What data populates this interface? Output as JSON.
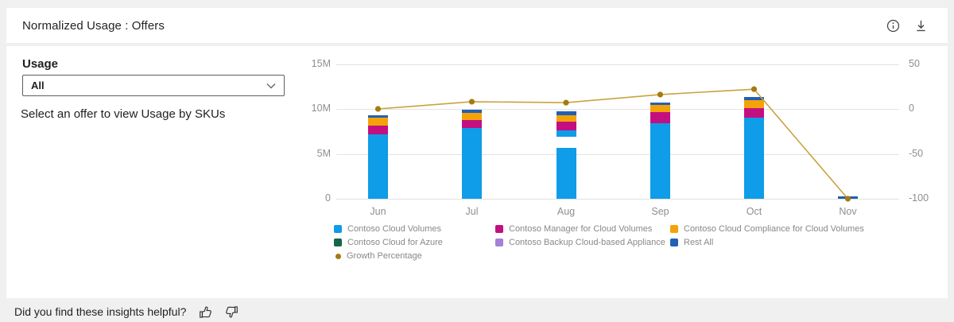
{
  "header": {
    "title": "Normalized Usage : Offers"
  },
  "panel": {
    "usage_label": "Usage",
    "dropdown_value": "All",
    "helper_text": "Select an offer to view Usage by SKUs"
  },
  "footer": {
    "feedback_text": "Did you find these insights helpful?"
  },
  "colors": {
    "volumes": "#0f9ce8",
    "manager": "#c40f80",
    "compliance": "#f4a20a",
    "azure": "#166649",
    "backup": "#a57fd8",
    "rest_all": "#2160b4",
    "growth_line": "#cba33d",
    "growth_dot": "#a57b0f",
    "gap": "#ffffff",
    "gridline": "#e2e2e2",
    "axis_text": "#908e8c"
  },
  "chart_data": {
    "type": "combo-stacked-bar-line",
    "units": "millions of normalized usage (left axis), percent (right axis)",
    "categories": [
      "Jun",
      "Jul",
      "Aug",
      "Sep",
      "Oct",
      "Nov"
    ],
    "left_axis": {
      "ticks": [
        "15M",
        "10M",
        "5M",
        "0"
      ],
      "range_millions": [
        0,
        15
      ],
      "grid": true
    },
    "right_axis": {
      "ticks": [
        "50",
        "0",
        "-50",
        "-100"
      ],
      "range_percent": [
        -100,
        50
      ]
    },
    "stacks": [
      {
        "month": "Jun",
        "segments": [
          [
            "volumes",
            7.2
          ],
          [
            "manager",
            0.9
          ],
          [
            "compliance",
            0.9
          ],
          [
            "rest_all",
            0.25
          ]
        ]
      },
      {
        "month": "Jul",
        "segments": [
          [
            "volumes",
            7.9
          ],
          [
            "manager",
            0.9
          ],
          [
            "compliance",
            0.75
          ],
          [
            "rest_all",
            0.4
          ]
        ]
      },
      {
        "month": "Aug",
        "segments": [
          [
            "volumes",
            5.65
          ],
          [
            "gap",
            1.25
          ],
          [
            "volumes",
            0.75
          ],
          [
            "manager",
            0.9
          ],
          [
            "compliance",
            0.75
          ],
          [
            "rest_all",
            0.45
          ]
        ]
      },
      {
        "month": "Sep",
        "segments": [
          [
            "volumes",
            8.45
          ],
          [
            "manager",
            1.2
          ],
          [
            "compliance",
            0.8
          ],
          [
            "rest_all",
            0.25
          ]
        ]
      },
      {
        "month": "Oct",
        "segments": [
          [
            "volumes",
            9.0
          ],
          [
            "manager",
            1.1
          ],
          [
            "compliance",
            0.9
          ],
          [
            "rest_all",
            0.3
          ]
        ]
      },
      {
        "month": "Nov",
        "segments": [
          [
            "rest_all",
            0.25
          ]
        ]
      }
    ],
    "growth_percentage": {
      "name": "Growth Percentage",
      "values": [
        0,
        8,
        7,
        16,
        22,
        -100
      ]
    },
    "legend": [
      {
        "label": "Contoso Cloud Volumes",
        "color": "volumes",
        "shape": "square"
      },
      {
        "label": "Contoso Manager for Cloud Volumes",
        "color": "manager",
        "shape": "square"
      },
      {
        "label": "Contoso Cloud Compliance for Cloud Volumes",
        "color": "compliance",
        "shape": "square"
      },
      {
        "label": "Contoso Cloud for Azure",
        "color": "azure",
        "shape": "square"
      },
      {
        "label": "Contoso Backup Cloud-based Appliance",
        "color": "backup",
        "shape": "square"
      },
      {
        "label": "Rest All",
        "color": "rest_all",
        "shape": "square"
      },
      {
        "label": "Growth Percentage",
        "color": "growth_dot",
        "shape": "circle"
      }
    ],
    "legend_position": "bottom"
  }
}
